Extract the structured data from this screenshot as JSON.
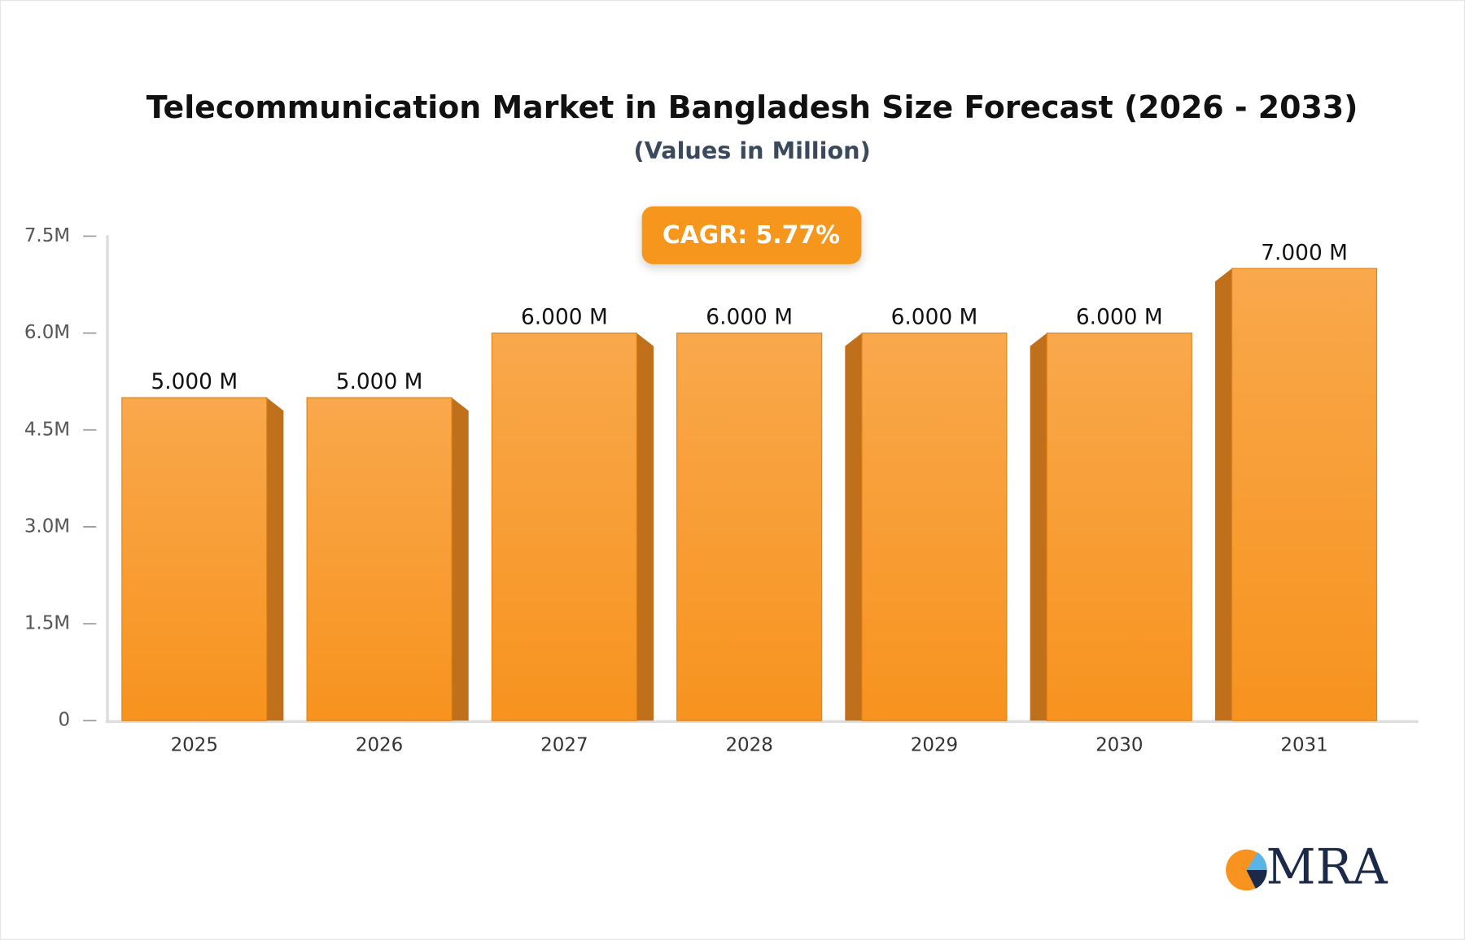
{
  "chart_data": {
    "type": "bar",
    "title": "Telecommunication Market in Bangladesh Size Forecast (2026 - 2033)",
    "subtitle": "(Values in Million)",
    "annotation": "CAGR: 5.77%",
    "logo": "MRA",
    "categories": [
      "2025",
      "2026",
      "2027",
      "2028",
      "2029",
      "2030",
      "2031"
    ],
    "values": [
      5,
      5,
      6,
      6,
      6,
      6,
      7
    ],
    "value_labels": [
      "5.000 M",
      "5.000 M",
      "6.000 M",
      "6.000 M",
      "6.000 M",
      "6.000 M",
      "7.000 M"
    ],
    "color": "#f7961f",
    "ylim": [
      0,
      7.5
    ],
    "yticks": [
      {
        "value": 0,
        "label": "0"
      },
      {
        "value": 1.5,
        "label": "1.5M"
      },
      {
        "value": 3,
        "label": "3.0M"
      },
      {
        "value": 4.5,
        "label": "4.5M"
      },
      {
        "value": 6,
        "label": "6.0M"
      },
      {
        "value": 7.5,
        "label": "7.5M"
      }
    ],
    "grid": false
  }
}
